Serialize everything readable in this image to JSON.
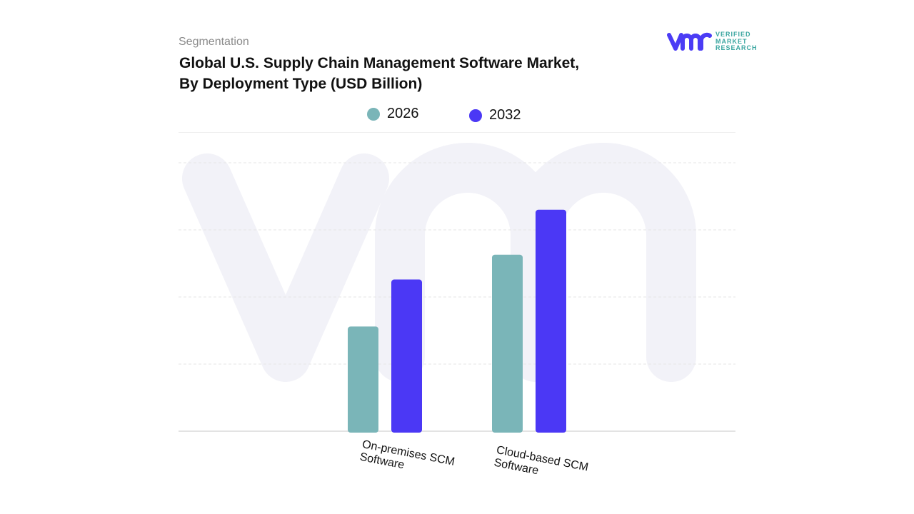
{
  "header": {
    "segment_label": "Segmentation",
    "title_line1": "Global U.S. Supply Chain Management Software Market,",
    "title_line2": "By Deployment Type (USD Billion)"
  },
  "logo": {
    "mark": "vmr",
    "text": [
      "VERIFIED",
      "MARKET",
      "RESEARCH"
    ],
    "color": "#4b3cf5"
  },
  "chart_data": {
    "type": "bar",
    "title": "Global U.S. Supply Chain Management Software Market, By Deployment Type (USD Billion)",
    "categories": [
      "On-premises SCM Software",
      "Cloud-based SCM Software"
    ],
    "series": [
      {
        "name": "2026",
        "color": "#7ab5b8",
        "values": [
          1.56,
          2.63
        ]
      },
      {
        "name": "2032",
        "color": "#4b38f5",
        "values": [
          2.26,
          3.3
        ]
      }
    ],
    "ylim": [
      0,
      4
    ],
    "y_ticks_shown": false,
    "grid": true,
    "legend": "top-center",
    "watermark": "vmr"
  }
}
